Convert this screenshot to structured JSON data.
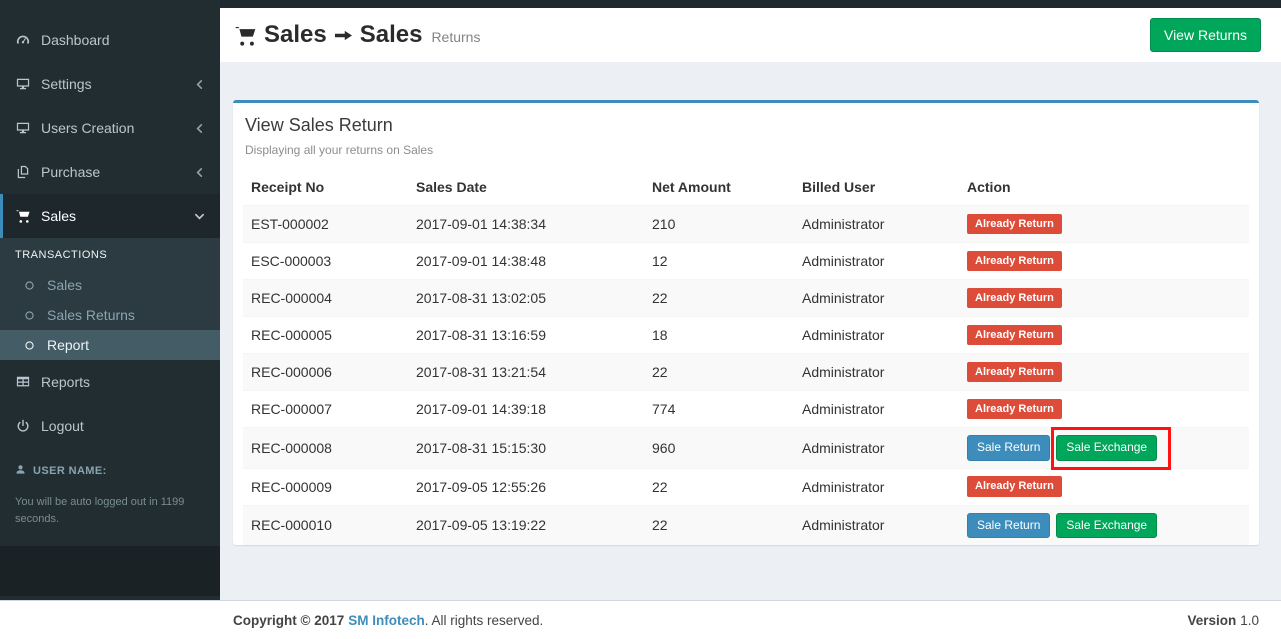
{
  "colors": {
    "accent": "#3c8dbc",
    "green": "#00a65a",
    "red": "#dd4b39",
    "highlight": "#ff1212",
    "sidebar_bg": "#222d32",
    "submenu_bg": "#2c3b41",
    "body_bg": "#ecf0f5"
  },
  "sidebar": {
    "items": [
      {
        "type": "link",
        "icon": "gauge",
        "label": "Dashboard"
      },
      {
        "type": "link",
        "icon": "desktop",
        "label": "Settings",
        "chevron": "left"
      },
      {
        "type": "link",
        "icon": "desktop",
        "label": "Users Creation",
        "chevron": "left"
      },
      {
        "type": "link",
        "icon": "copy",
        "label": "Purchase",
        "chevron": "left"
      },
      {
        "type": "link",
        "icon": "cart",
        "label": "Sales",
        "chevron": "down",
        "active": true
      },
      {
        "type": "section",
        "label": "TRANSACTIONS"
      },
      {
        "type": "sub",
        "icon": "circle",
        "label": "Sales"
      },
      {
        "type": "sub",
        "icon": "circle",
        "label": "Sales Returns"
      },
      {
        "type": "sub",
        "icon": "circle",
        "label": "Report",
        "hovered": true
      },
      {
        "type": "link",
        "icon": "table",
        "label": "Reports"
      },
      {
        "type": "link",
        "icon": "power",
        "label": "Logout"
      }
    ],
    "user_label": "USER NAME:",
    "auto_logout_text": "You will be auto logged out in 1199 seconds."
  },
  "header": {
    "title": "Sales",
    "section": "Sales",
    "section_small": "Returns",
    "view_returns_button": "View Returns"
  },
  "panel": {
    "title": "View Sales Return",
    "subtitle": "Displaying all your returns on Sales",
    "table": {
      "columns": [
        "Receipt No",
        "Sales Date",
        "Net Amount",
        "Billed User",
        "Action"
      ],
      "rows": [
        {
          "receipt_no": "EST-000002",
          "sales_date": "2017-09-01 14:38:34",
          "net_amount": "210",
          "billed_user": "Administrator",
          "actions": [
            {
              "kind": "badge",
              "label": "Already Return"
            }
          ]
        },
        {
          "receipt_no": "ESC-000003",
          "sales_date": "2017-09-01 14:38:48",
          "net_amount": "12",
          "billed_user": "Administrator",
          "actions": [
            {
              "kind": "badge",
              "label": "Already Return"
            }
          ]
        },
        {
          "receipt_no": "REC-000004",
          "sales_date": "2017-08-31 13:02:05",
          "net_amount": "22",
          "billed_user": "Administrator",
          "actions": [
            {
              "kind": "badge",
              "label": "Already Return"
            }
          ]
        },
        {
          "receipt_no": "REC-000005",
          "sales_date": "2017-08-31 13:16:59",
          "net_amount": "18",
          "billed_user": "Administrator",
          "actions": [
            {
              "kind": "badge",
              "label": "Already Return"
            }
          ]
        },
        {
          "receipt_no": "REC-000006",
          "sales_date": "2017-08-31 13:21:54",
          "net_amount": "22",
          "billed_user": "Administrator",
          "actions": [
            {
              "kind": "badge",
              "label": "Already Return"
            }
          ]
        },
        {
          "receipt_no": "REC-000007",
          "sales_date": "2017-09-01 14:39:18",
          "net_amount": "774",
          "billed_user": "Administrator",
          "actions": [
            {
              "kind": "badge",
              "label": "Already Return"
            }
          ]
        },
        {
          "receipt_no": "REC-000008",
          "sales_date": "2017-08-31 15:15:30",
          "net_amount": "960",
          "billed_user": "Administrator",
          "actions": [
            {
              "kind": "button",
              "color": "blue",
              "label": "Sale Return"
            },
            {
              "kind": "button",
              "color": "green",
              "label": "Sale Exchange",
              "highlighted": true
            }
          ]
        },
        {
          "receipt_no": "REC-000009",
          "sales_date": "2017-09-05 12:55:26",
          "net_amount": "22",
          "billed_user": "Administrator",
          "actions": [
            {
              "kind": "badge",
              "label": "Already Return"
            }
          ]
        },
        {
          "receipt_no": "REC-000010",
          "sales_date": "2017-09-05 13:19:22",
          "net_amount": "22",
          "billed_user": "Administrator",
          "actions": [
            {
              "kind": "button",
              "color": "blue",
              "label": "Sale Return"
            },
            {
              "kind": "button",
              "color": "green",
              "label": "Sale Exchange"
            }
          ]
        }
      ]
    }
  },
  "footer": {
    "copyright_prefix": "Copyright © 2017",
    "company": "SM Infotech",
    "copyright_suffix": ". All rights reserved.",
    "version_label": "Version",
    "version_value": "1.0"
  }
}
